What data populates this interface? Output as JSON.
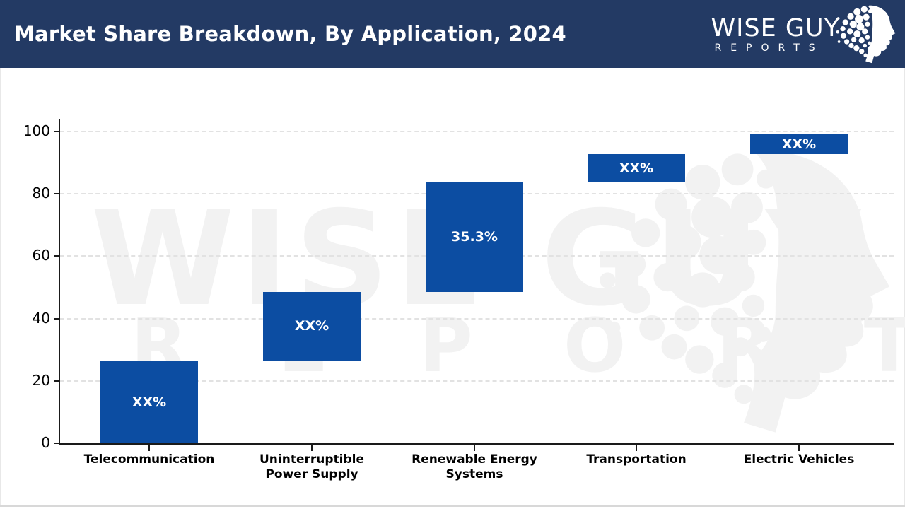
{
  "header": {
    "title": "Market Share Breakdown, By Application, 2024"
  },
  "brand": {
    "line1": "WISE GUY",
    "line2": "REPORTS"
  },
  "watermark": {
    "line1": "WISE GUY",
    "line2": "R E P O R T S"
  },
  "colors": {
    "header_bg": "#233A64",
    "bar": "#0C4DA2",
    "bar_label": "#FFFFFF",
    "title_text": "#FFFFFF",
    "axis": "#1a1a1a",
    "grid": "#e2e2e2",
    "watermark": "#f2f2f2"
  },
  "chart_data": {
    "type": "bar",
    "variant": "waterfall",
    "title": "Market Share Breakdown, By Application, 2024",
    "xlabel": "",
    "ylabel": "",
    "legend": null,
    "grid": "horizontal-dashed",
    "yticks": [
      0,
      20,
      40,
      60,
      80,
      100
    ],
    "ylim": [
      0,
      104
    ],
    "categories": [
      "Telecommunication",
      "Uninterruptible Power Supply",
      "Renewable Energy Systems",
      "Transportation",
      "Electric Vehicles"
    ],
    "category_lines": [
      [
        "Telecommunication"
      ],
      [
        "Uninterruptible",
        "Power Supply"
      ],
      [
        "Renewable Energy",
        "Systems"
      ],
      [
        "Transportation"
      ],
      [
        "Electric Vehicles"
      ]
    ],
    "segments": [
      {
        "category": "Telecommunication",
        "start": 0,
        "end": 26.5,
        "label": "XX%"
      },
      {
        "category": "Uninterruptible Power Supply",
        "start": 26.5,
        "end": 48.6,
        "label": "XX%"
      },
      {
        "category": "Renewable Energy Systems",
        "start": 48.6,
        "end": 83.9,
        "label": "35.3%",
        "value": 35.3
      },
      {
        "category": "Transportation",
        "start": 83.9,
        "end": 92.7,
        "label": "XX%"
      },
      {
        "category": "Electric Vehicles",
        "start": 92.7,
        "end": 99.3,
        "label": "XX%"
      }
    ],
    "bar_color": "#0C4DA2",
    "bar_label_color": "#FFFFFF"
  }
}
